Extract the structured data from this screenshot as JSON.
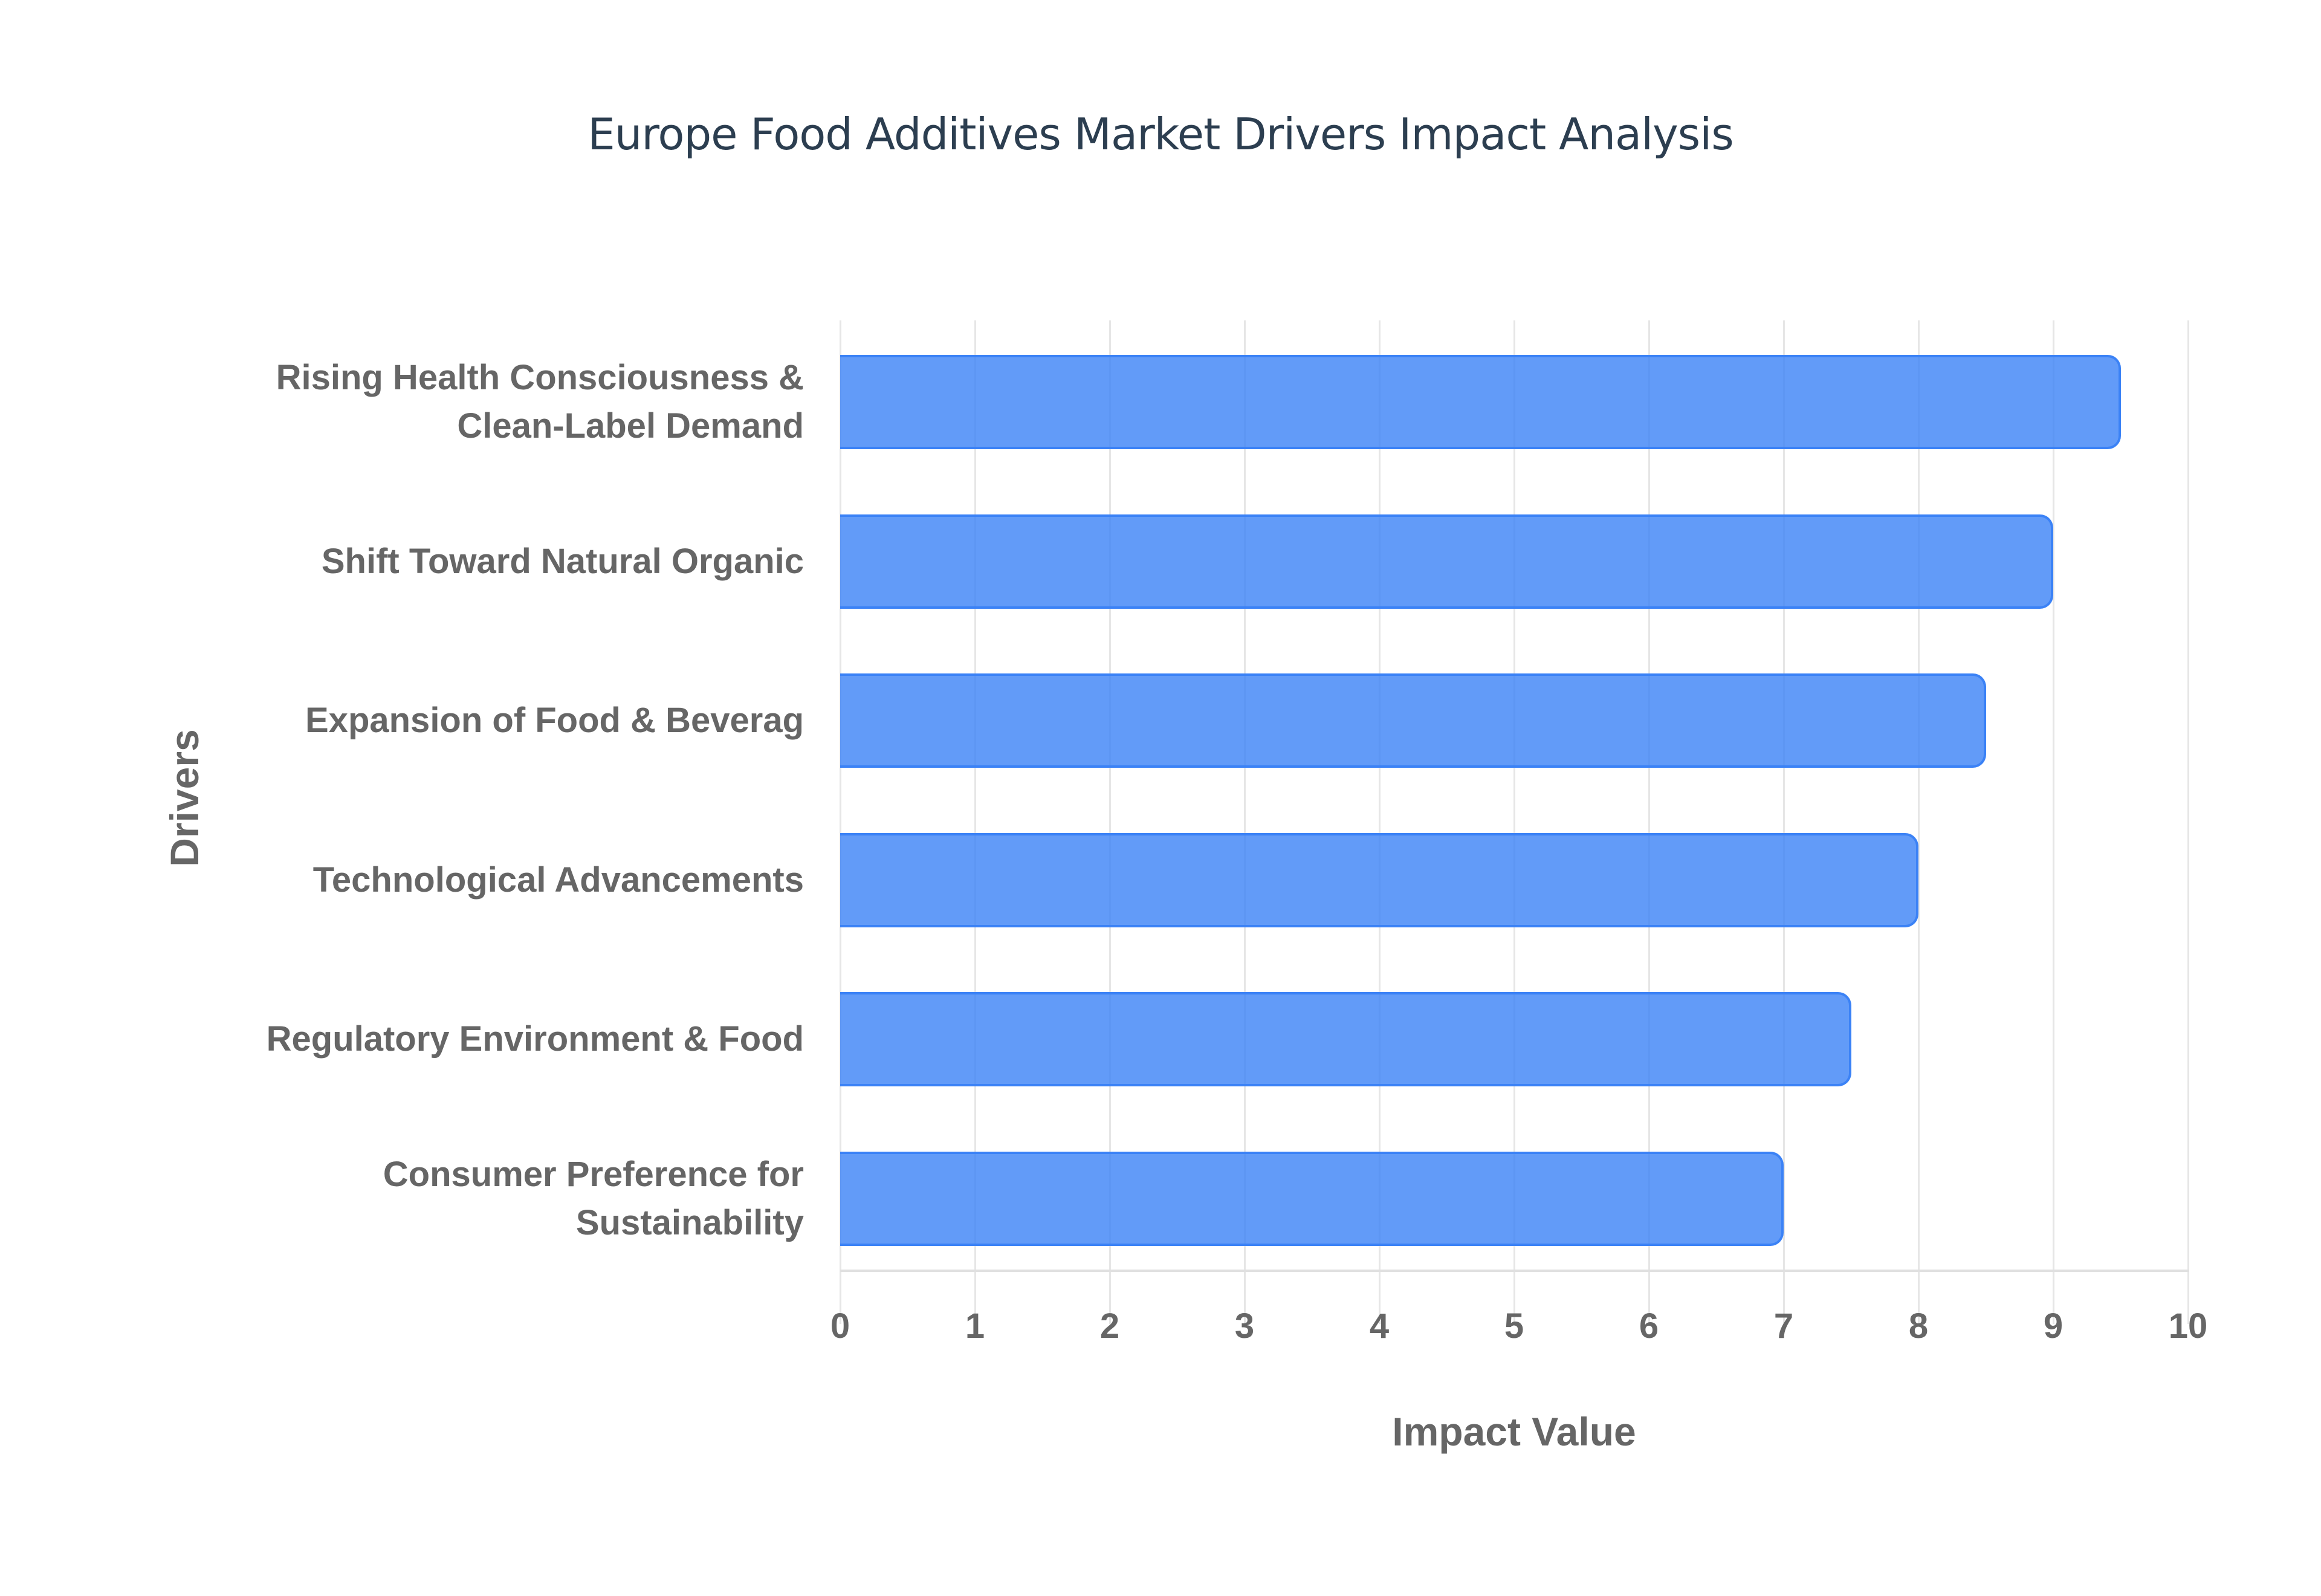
{
  "chart_data": {
    "type": "bar",
    "orientation": "horizontal",
    "title": "Europe Food Additives Market Drivers Impact Analysis",
    "xlabel": "Impact Value",
    "ylabel": "Drivers",
    "xlim": [
      0,
      10
    ],
    "grid": true,
    "legend": null,
    "categories": [
      "Rising Health Consciousness & Clean-Label Demand",
      "Shift Toward Natural Organic",
      "Expansion of Food & Beverag",
      "Technological Advancements",
      "Regulatory Environment & Food",
      "Consumer Preference for Sustainability"
    ],
    "values": [
      9.5,
      9,
      8.5,
      8,
      7.5,
      7
    ],
    "bar_color": "#3b82f6",
    "x_ticks": [
      "0",
      "1",
      "2",
      "3",
      "4",
      "5",
      "6",
      "7",
      "8",
      "9",
      "10"
    ]
  },
  "title": "Europe Food Additives Market Drivers Impact Analysis",
  "x_axis": {
    "title": "Impact Value",
    "ticks": [
      "0",
      "1",
      "2",
      "3",
      "4",
      "5",
      "6",
      "7",
      "8",
      "9",
      "10"
    ]
  },
  "y_axis": {
    "title": "Drivers",
    "labels": [
      [
        "Rising Health Consciousness &",
        "Clean-Label Demand"
      ],
      [
        "Shift Toward Natural Organic"
      ],
      [
        "Expansion of Food & Beverag"
      ],
      [
        "Technological Advancements"
      ],
      [
        "Regulatory Environment & Food"
      ],
      [
        "Consumer Preference for",
        "Sustainability"
      ]
    ]
  },
  "bars": [
    {
      "label": "Rising Health Consciousness & Clean-Label Demand",
      "value": 9.5
    },
    {
      "label": "Shift Toward Natural Organic",
      "value": 9
    },
    {
      "label": "Expansion of Food & Beverag",
      "value": 8.5
    },
    {
      "label": "Technological Advancements",
      "value": 8
    },
    {
      "label": "Regulatory Environment & Food",
      "value": 7.5
    },
    {
      "label": "Consumer Preference for Sustainability",
      "value": 7
    }
  ]
}
